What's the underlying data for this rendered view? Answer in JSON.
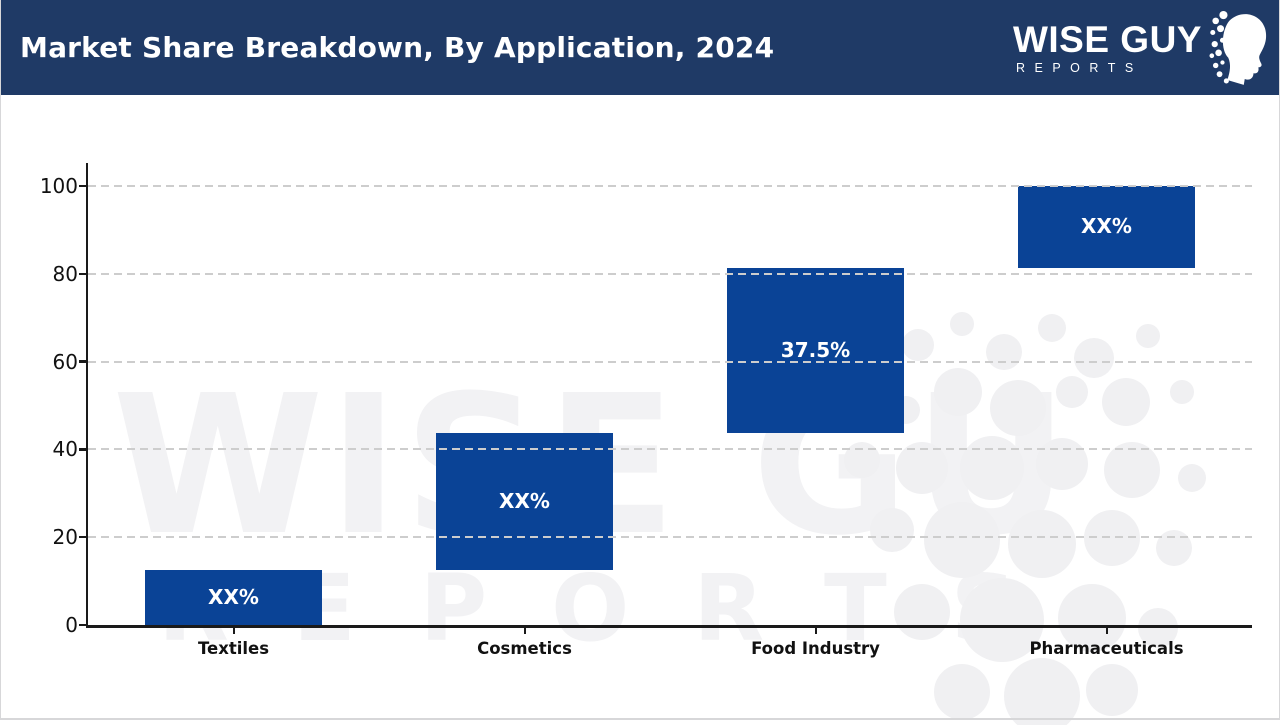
{
  "header": {
    "title": "Market Share Breakdown, By Application, 2024",
    "bg_color": "#1f3a66",
    "logo": {
      "line1": "WISE GUY",
      "line2": "REPORTS"
    }
  },
  "watermark": {
    "line1": "WISE GU",
    "line2": "REPORTS"
  },
  "chart_data": {
    "type": "bar",
    "subtype": "waterfall",
    "title": "Market Share Breakdown, By Application, 2024",
    "categories": [
      "Textiles",
      "Cosmetics",
      "Food Industry",
      "Pharmaceuticals"
    ],
    "segments": [
      {
        "category": "Textiles",
        "start": 0,
        "end": 12.5,
        "value": 12.5,
        "label": "XX%"
      },
      {
        "category": "Cosmetics",
        "start": 12.5,
        "end": 43.75,
        "value": 31.25,
        "label": "XX%"
      },
      {
        "category": "Food Industry",
        "start": 43.75,
        "end": 81.25,
        "value": 37.5,
        "label": "37.5%"
      },
      {
        "category": "Pharmaceuticals",
        "start": 81.25,
        "end": 100,
        "value": 18.75,
        "label": "XX%"
      }
    ],
    "xlabel": "",
    "ylabel": "",
    "ylim": [
      0,
      100
    ],
    "yticks": [
      0,
      20,
      40,
      60,
      80,
      100
    ],
    "grid": "horizontal-dashed",
    "legend": "none",
    "bar_color": "#0a4396",
    "bar_label_color": "#ffffff",
    "axis_color": "#1a1a1a",
    "gridline_color": "#cdcdcd",
    "tick_label_color": "#111111"
  }
}
